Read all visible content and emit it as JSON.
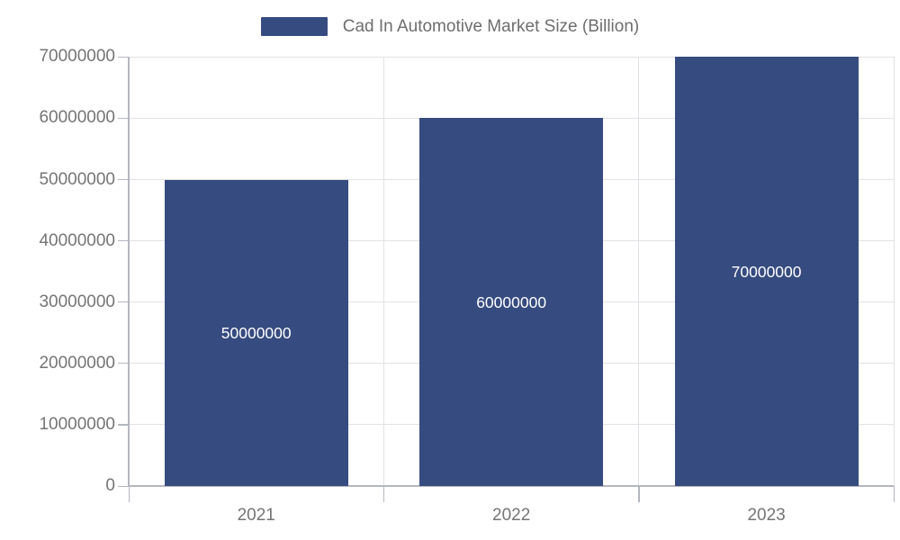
{
  "chart_data": {
    "type": "bar",
    "title": "Cad In Automotive Market Size (Billion)",
    "legend": {
      "label": "Cad In Automotive Market Size (Billion)",
      "position": "top-center"
    },
    "categories": [
      "2021",
      "2022",
      "2023"
    ],
    "series": [
      {
        "name": "Cad In Automotive Market Size (Billion)",
        "values": [
          50000000,
          60000000,
          70000000
        ]
      }
    ],
    "data_labels": [
      "50000000",
      "60000000",
      "70000000"
    ],
    "y_ticks": [
      0,
      10000000,
      20000000,
      30000000,
      40000000,
      50000000,
      60000000,
      70000000
    ],
    "y_tick_labels": [
      "0",
      "10000000",
      "20000000",
      "30000000",
      "40000000",
      "50000000",
      "60000000",
      "70000000"
    ],
    "ylim": [
      0,
      70000000
    ],
    "xlabel": "",
    "ylabel": "",
    "grid": true,
    "colors": {
      "bar": "#364B7F",
      "data_label": "#ffffff",
      "gridline": "#e2e2e6",
      "axis": "#b4b7c0",
      "tick_label": "#757575",
      "legend_text": "#6e6e6e",
      "background": "#ffffff"
    }
  }
}
